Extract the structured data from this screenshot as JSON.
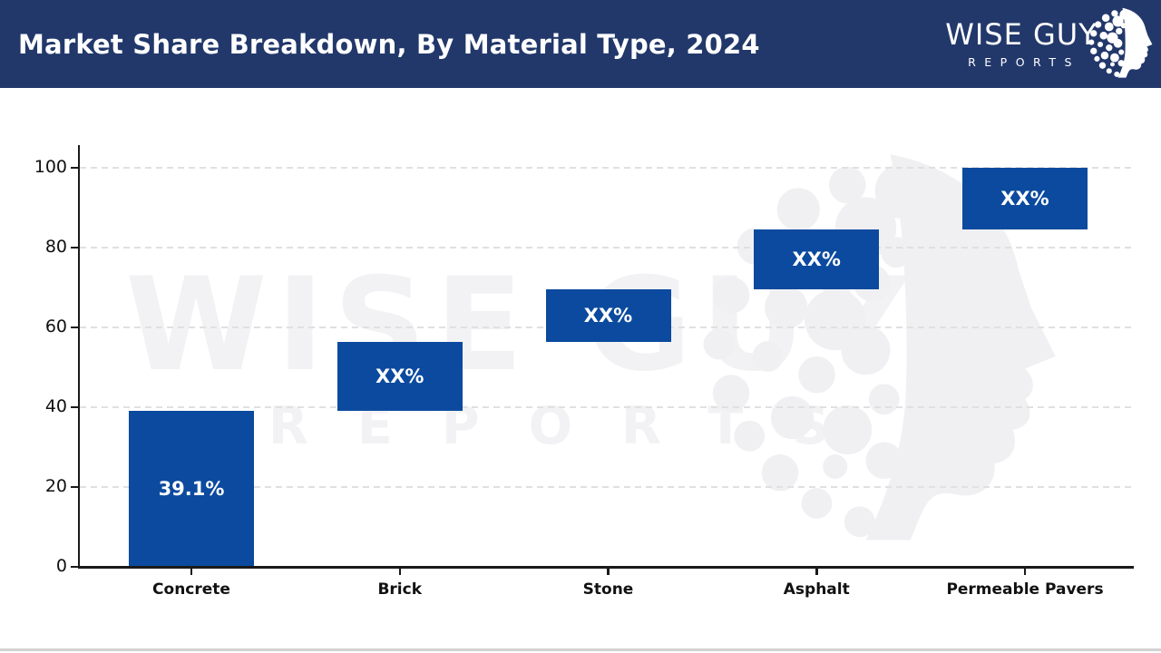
{
  "header": {
    "background": "#22386b",
    "title": "Market Share Breakdown, By Material Type, 2024",
    "logo": {
      "line1": "WISE GUY",
      "line2": "REPORTS"
    }
  },
  "watermark": {
    "line1": "WISE GUY",
    "line2": "REPORTS"
  },
  "chart_data": {
    "type": "bar",
    "subtype": "waterfall",
    "title": "Market Share Breakdown, By Material Type, 2024",
    "categories": [
      "Concrete",
      "Brick",
      "Stone",
      "Asphalt",
      "Permeable Pavers"
    ],
    "segments": [
      {
        "category": "Concrete",
        "start": 0,
        "end": 39.1,
        "label": "39.1%"
      },
      {
        "category": "Brick",
        "start": 39.1,
        "end": 56.3,
        "label": "XX%"
      },
      {
        "category": "Stone",
        "start": 56.3,
        "end": 69.5,
        "label": "XX%"
      },
      {
        "category": "Asphalt",
        "start": 69.5,
        "end": 84.5,
        "label": "XX%"
      },
      {
        "category": "Permeable Pavers",
        "start": 84.5,
        "end": 100,
        "label": "XX%"
      }
    ],
    "xlabel": "",
    "ylabel": "",
    "ylim": [
      0,
      100
    ],
    "yticks": [
      0,
      20,
      40,
      60,
      80,
      100
    ],
    "grid": "dashed-horizontal",
    "legend": "none",
    "colors": {
      "bar": "#0b4a9e",
      "bar_label": "#ffffff",
      "axis": "#1a1a1a",
      "grid": "#e0e0e0",
      "tick_label": "#111111"
    }
  }
}
